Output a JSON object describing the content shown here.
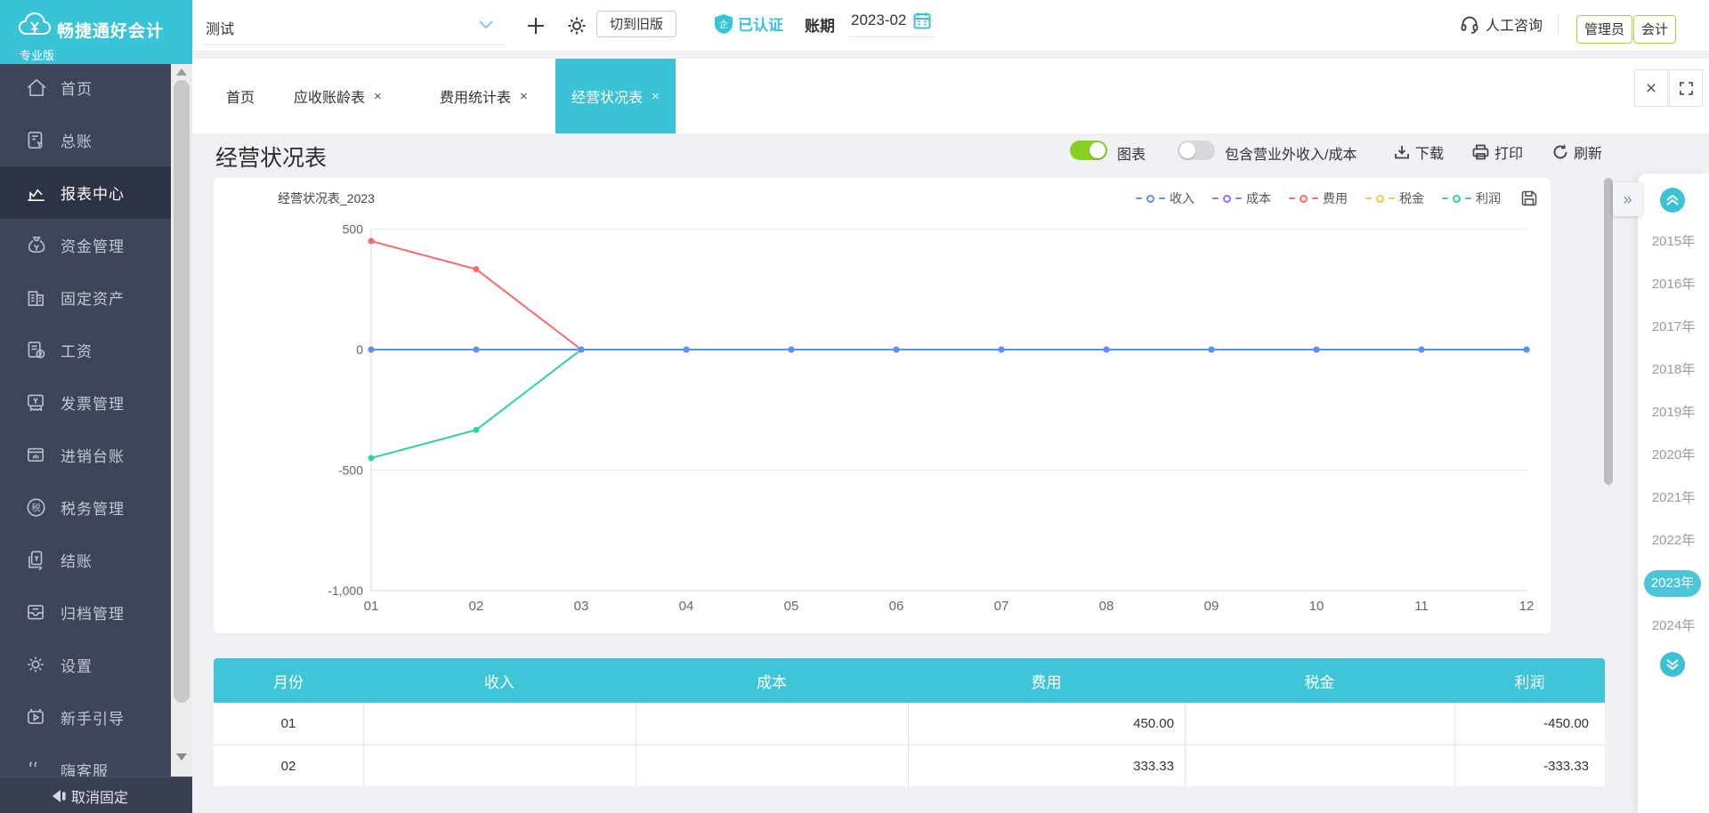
{
  "brand": {
    "name": "畅捷通好会计",
    "edition": "专业版"
  },
  "topbar": {
    "company": "测试",
    "switch_old_label": "切到旧版",
    "certified_glyph": "企",
    "certified_label": "已认证",
    "period_label": "账期",
    "period_value": "2023-02",
    "support_label": "人工咨询",
    "roles": [
      "管理员",
      "会计"
    ]
  },
  "sidebar": {
    "items": [
      {
        "label": "首页",
        "icon": "home-icon",
        "active": false
      },
      {
        "label": "总账",
        "icon": "ledger-icon",
        "active": false
      },
      {
        "label": "报表中心",
        "icon": "report-icon",
        "active": true
      },
      {
        "label": "资金管理",
        "icon": "funds-icon",
        "active": false
      },
      {
        "label": "固定资产",
        "icon": "assets-icon",
        "active": false
      },
      {
        "label": "工资",
        "icon": "salary-icon",
        "active": false
      },
      {
        "label": "发票管理",
        "icon": "invoice-icon",
        "active": false
      },
      {
        "label": "进销台账",
        "icon": "inventory-icon",
        "active": false
      },
      {
        "label": "税务管理",
        "icon": "tax-icon",
        "active": false
      },
      {
        "label": "结账",
        "icon": "closing-icon",
        "active": false
      },
      {
        "label": "归档管理",
        "icon": "archive-icon",
        "active": false
      },
      {
        "label": "设置",
        "icon": "settings-icon",
        "active": false
      },
      {
        "label": "新手引导",
        "icon": "guide-icon",
        "active": false
      },
      {
        "label": "嗨客服",
        "icon": "service-icon",
        "active": false
      }
    ],
    "unpin_label": "取消固定"
  },
  "tabs": [
    {
      "label": "首页",
      "closable": false,
      "active": false
    },
    {
      "label": "应收账龄表",
      "closable": true,
      "active": false
    },
    {
      "label": "费用统计表",
      "closable": true,
      "active": false
    },
    {
      "label": "经营状况表",
      "closable": true,
      "active": true
    }
  ],
  "toolbar": {
    "title": "经营状况表",
    "chart_toggle_label": "图表",
    "chart_toggle_on": true,
    "nonop_toggle_label": "包含营业外收入/成本",
    "nonop_toggle_on": false,
    "download_label": "下载",
    "print_label": "打印",
    "refresh_label": "刷新"
  },
  "chart_data": {
    "type": "line",
    "title": "经营状况表_2023",
    "x": [
      "01",
      "02",
      "03",
      "04",
      "05",
      "06",
      "07",
      "08",
      "09",
      "10",
      "11",
      "12"
    ],
    "series": [
      {
        "name": "收入",
        "color": "#5b8ff9",
        "values": [
          0,
          0,
          0,
          0,
          0,
          0,
          0,
          0,
          0,
          0,
          0,
          0
        ]
      },
      {
        "name": "成本",
        "color": "#9b6ef3",
        "values": [
          0,
          0,
          0,
          0,
          0,
          0,
          0,
          0,
          0,
          0,
          0,
          0
        ]
      },
      {
        "name": "费用",
        "color": "#f56c6c",
        "values": [
          450,
          333.33,
          0,
          0,
          0,
          0,
          0,
          0,
          0,
          0,
          0,
          0
        ]
      },
      {
        "name": "税金",
        "color": "#f6c54b",
        "values": [
          0,
          0,
          0,
          0,
          0,
          0,
          0,
          0,
          0,
          0,
          0,
          0
        ]
      },
      {
        "name": "利润",
        "color": "#2ed1a3",
        "values": [
          -450,
          -333.33,
          0,
          0,
          0,
          0,
          0,
          0,
          0,
          0,
          0,
          0
        ]
      }
    ],
    "ylim": [
      -1000,
      500
    ],
    "yticks": [
      500,
      0,
      -500,
      -1000
    ],
    "ytick_labels": [
      "500",
      "0",
      "-500",
      "-1,000"
    ],
    "legend_position": "top-right",
    "grid": true
  },
  "year_panel": {
    "years": [
      "2015年",
      "2016年",
      "2017年",
      "2018年",
      "2019年",
      "2020年",
      "2021年",
      "2022年",
      "2023年",
      "2024年"
    ],
    "active": "2023年"
  },
  "table": {
    "headers": [
      "月份",
      "收入",
      "成本",
      "费用",
      "税金",
      "利润"
    ],
    "rows": [
      [
        "01",
        "",
        "",
        "450.00",
        "",
        "-450.00"
      ],
      [
        "02",
        "",
        "",
        "333.33",
        "",
        "-333.33"
      ]
    ]
  },
  "icons": {
    "collapse_right": "»",
    "close": "×"
  },
  "colors": {
    "accent": "#3bc2d5",
    "toggle_on": "#87d125",
    "sidebar_bg": "#404459",
    "table_header": "#3ec6d8"
  }
}
